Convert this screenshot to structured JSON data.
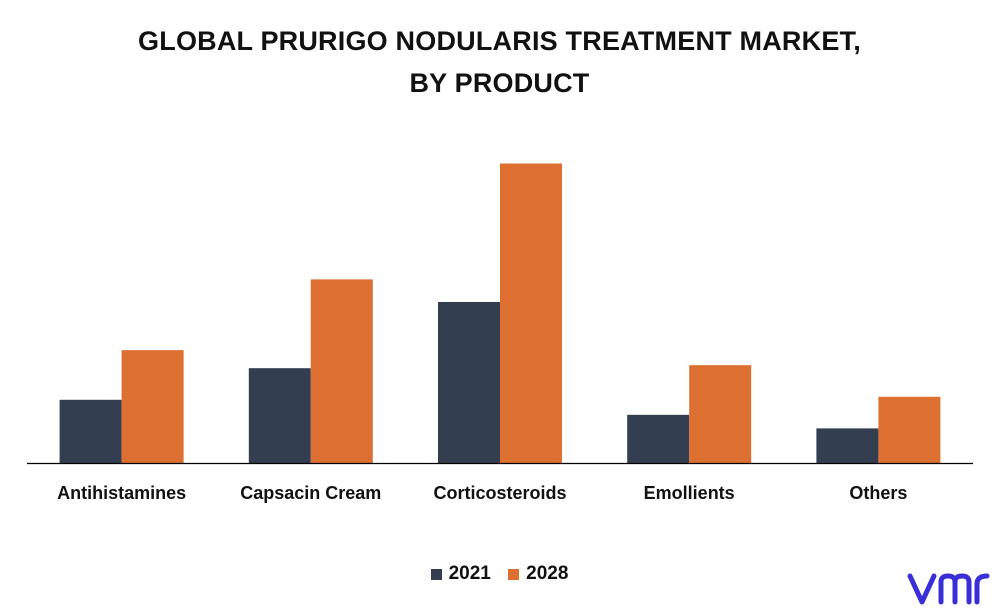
{
  "title_line1": "GLOBAL PRURIGO NODULARIS TREATMENT MARKET,",
  "title_line2": "BY PRODUCT",
  "colors": {
    "2021": "#333f50",
    "2028": "#dd7030",
    "axis": "#000000",
    "logo": "#3a2fd6"
  },
  "logo_text": "vmr",
  "chart_data": {
    "type": "bar",
    "title": "GLOBAL PRURIGO NODULARIS TREATMENT MARKET, BY PRODUCT",
    "categories": [
      "Antihistamines",
      "Capsacin Cream",
      "Corticosteroids",
      "Emollients",
      "Others"
    ],
    "series": [
      {
        "name": "2021",
        "values": [
          21,
          31.5,
          53.5,
          16,
          11.5
        ]
      },
      {
        "name": "2028",
        "values": [
          37.5,
          61,
          99.5,
          32.5,
          22
        ]
      }
    ],
    "ylim": [
      0,
      100
    ],
    "grid": false,
    "y_axis_visible": false,
    "legend_position": "bottom"
  }
}
